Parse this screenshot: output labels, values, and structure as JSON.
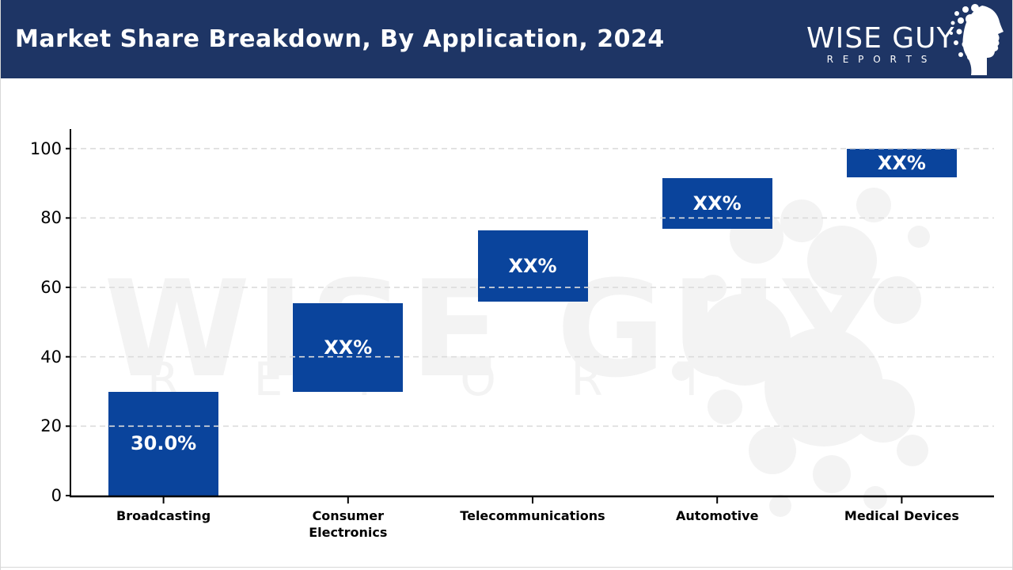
{
  "header": {
    "title": "Market Share Breakdown, By Application, 2024",
    "logo": {
      "wordmark": "WISE GUY",
      "subtext": "R E P O R T S"
    }
  },
  "watermark": {
    "wordmark": "WISE GUY",
    "subtext": "R E P O R T S"
  },
  "colors": {
    "header_bg": "#1e3565",
    "bar_fill": "#0a449c",
    "bar_label": "#ffffff",
    "grid_line": "#dcdcdc",
    "axis": "#000000",
    "tick_text": "#000000",
    "watermark": "#f3f3f3",
    "page_border": "#d8d8d8"
  },
  "chart_data": {
    "type": "bar",
    "subtype": "waterfall",
    "title": "Market Share Breakdown, By Application, 2024",
    "xlabel": "",
    "ylabel": "",
    "ylim": [
      0,
      105
    ],
    "yticks": [
      0,
      20,
      40,
      60,
      80,
      100
    ],
    "grid": {
      "axis": "y",
      "style": "dashed"
    },
    "legend": "none",
    "categories": [
      "Broadcasting",
      "Consumer\nElectronics",
      "Telecommunications",
      "Automotive",
      "Medical Devices"
    ],
    "segments": [
      {
        "category": "Broadcasting",
        "start": 0,
        "end": 30,
        "label": "30.0%"
      },
      {
        "category": "Consumer\nElectronics",
        "start": 30,
        "end": 55.5,
        "label": "XX%"
      },
      {
        "category": "Telecommunications",
        "start": 55.8,
        "end": 76.5,
        "label": "XX%"
      },
      {
        "category": "Automotive",
        "start": 76.9,
        "end": 91.5,
        "label": "XX%"
      },
      {
        "category": "Medical Devices",
        "start": 91.8,
        "end": 99.9,
        "label": "XX%"
      }
    ]
  }
}
